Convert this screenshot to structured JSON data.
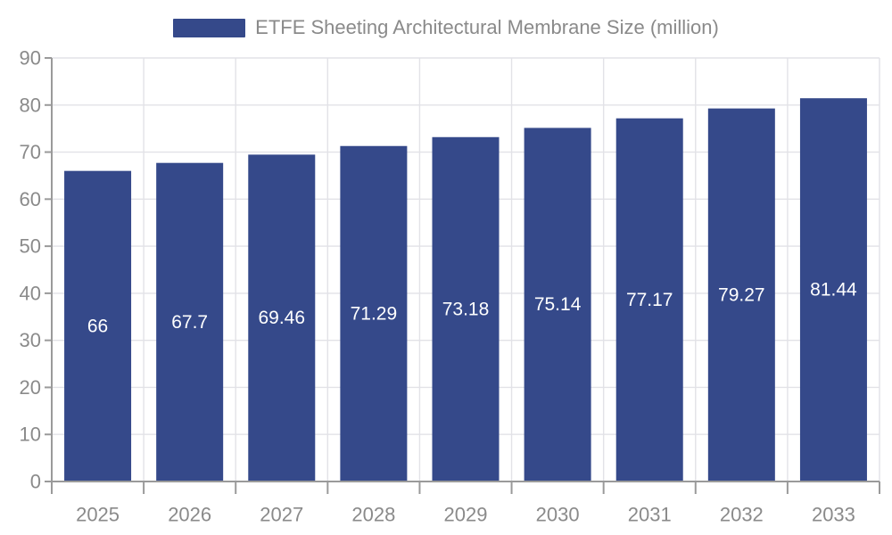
{
  "chart_data": {
    "type": "bar",
    "title": "ETFE Sheeting Architectural Membrane Size (million)",
    "categories": [
      "2025",
      "2026",
      "2027",
      "2028",
      "2029",
      "2030",
      "2031",
      "2032",
      "2033"
    ],
    "values": [
      66,
      67.7,
      69.46,
      71.29,
      73.18,
      75.14,
      77.17,
      79.27,
      81.44
    ],
    "value_labels": [
      "66",
      "67.7",
      "69.46",
      "71.29",
      "73.18",
      "75.14",
      "77.17",
      "79.27",
      "81.44"
    ],
    "xlabel": "",
    "ylabel": "",
    "ylim": [
      0,
      90
    ],
    "yticks": [
      0,
      10,
      20,
      30,
      40,
      50,
      60,
      70,
      80,
      90
    ],
    "grid": true,
    "legend_position": "top-center",
    "value_label_position": "inside-center",
    "colors": {
      "bar": "#35498a",
      "value_label": "#ffffff",
      "axis": "#9a9a9a",
      "gridline": "#e2e2e7",
      "tick_label": "#8a8a8a",
      "legend_text": "#8a8a8a",
      "background": "#ffffff"
    }
  }
}
